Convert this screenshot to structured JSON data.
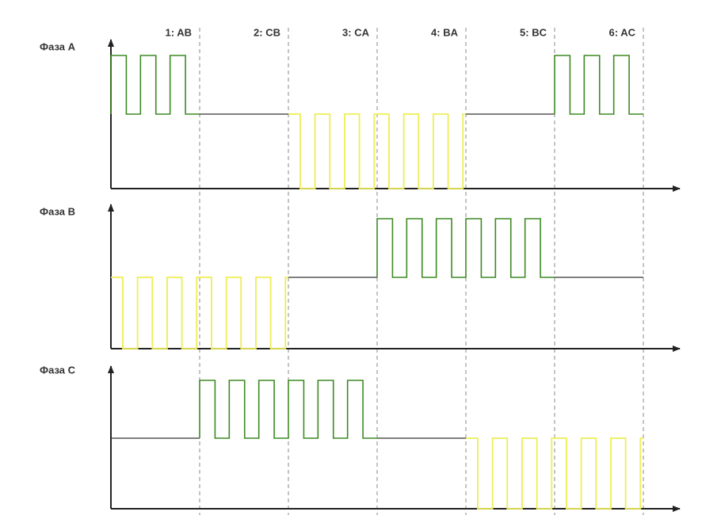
{
  "phases": [
    {
      "label": "Фаза A"
    },
    {
      "label": "Фаза B"
    },
    {
      "label": "Фаза C"
    }
  ],
  "steps": [
    "1: AB",
    "2: CB",
    "3: CA",
    "4: BA",
    "5: BC",
    "6: AC"
  ]
}
